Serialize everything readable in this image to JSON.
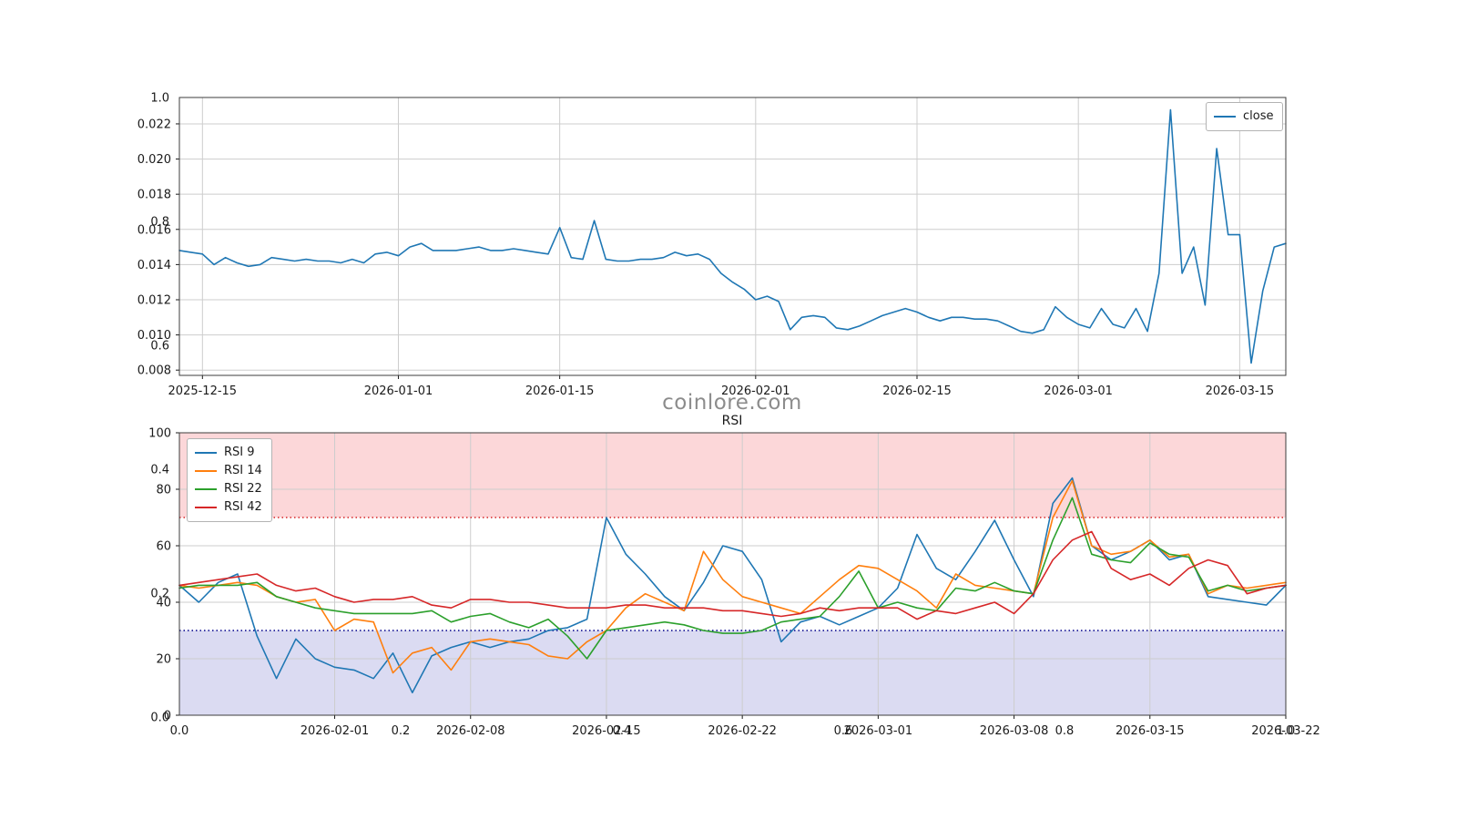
{
  "watermark": "coinlore.com",
  "rsi_title": "RSI",
  "chart_data": [
    {
      "name": "price-chart",
      "type": "line",
      "title": "",
      "xlabel": "",
      "ylabel": "",
      "start_date": "2025-12-13",
      "interval": "daily",
      "grid": true,
      "legend_position": "upper right",
      "ylim": [
        0.0077,
        0.0235
      ],
      "y_ticks": [
        {
          "value": 0.008,
          "label": "0.008"
        },
        {
          "value": 0.01,
          "label": "0.010"
        },
        {
          "value": 0.012,
          "label": "0.012"
        },
        {
          "value": 0.014,
          "label": "0.014"
        },
        {
          "value": 0.016,
          "label": "0.016"
        },
        {
          "value": 0.018,
          "label": "0.018"
        },
        {
          "value": 0.02,
          "label": "0.020"
        },
        {
          "value": 0.022,
          "label": "0.022"
        }
      ],
      "x_ticks": [
        {
          "index": 2,
          "label": "2025-12-15"
        },
        {
          "index": 19,
          "label": "2026-01-01"
        },
        {
          "index": 33,
          "label": "2026-01-15"
        },
        {
          "index": 50,
          "label": "2026-02-01"
        },
        {
          "index": 64,
          "label": "2026-02-15"
        },
        {
          "index": 78,
          "label": "2026-03-01"
        },
        {
          "index": 92,
          "label": "2026-03-15"
        }
      ],
      "series": [
        {
          "name": "close",
          "color": "#1f77b4",
          "values": [
            0.0148,
            0.0147,
            0.0146,
            0.014,
            0.0144,
            0.0141,
            0.0139,
            0.014,
            0.0144,
            0.0143,
            0.0142,
            0.0143,
            0.0142,
            0.0142,
            0.0141,
            0.0143,
            0.0141,
            0.0146,
            0.0147,
            0.0145,
            0.015,
            0.0152,
            0.0148,
            0.0148,
            0.0148,
            0.0149,
            0.015,
            0.0148,
            0.0148,
            0.0149,
            0.0148,
            0.0147,
            0.0146,
            0.0161,
            0.0144,
            0.0143,
            0.0165,
            0.0143,
            0.0142,
            0.0142,
            0.0143,
            0.0143,
            0.0144,
            0.0147,
            0.0145,
            0.0146,
            0.0143,
            0.0135,
            0.013,
            0.0126,
            0.012,
            0.0122,
            0.0119,
            0.0103,
            0.011,
            0.0111,
            0.011,
            0.0104,
            0.0103,
            0.0105,
            0.0108,
            0.0111,
            0.0113,
            0.0115,
            0.0113,
            0.011,
            0.0108,
            0.011,
            0.011,
            0.0109,
            0.0109,
            0.0108,
            0.0105,
            0.0102,
            0.0101,
            0.0103,
            0.0116,
            0.011,
            0.0106,
            0.0104,
            0.0115,
            0.0106,
            0.0104,
            0.0115,
            0.0102,
            0.0135,
            0.0228,
            0.0135,
            0.015,
            0.0117,
            0.0206,
            0.0157,
            0.0157,
            0.0084,
            0.0125,
            0.015,
            0.0152
          ]
        }
      ]
    },
    {
      "name": "rsi-chart",
      "type": "line",
      "title": "RSI",
      "xlabel": "",
      "ylabel": "",
      "start_date": "2026-01-24",
      "interval": "daily",
      "grid": true,
      "legend_position": "upper left",
      "ylim": [
        0,
        100
      ],
      "y_ticks": [
        {
          "value": 0,
          "label": "0"
        },
        {
          "value": 20,
          "label": "20"
        },
        {
          "value": 40,
          "label": "40"
        },
        {
          "value": 60,
          "label": "60"
        },
        {
          "value": 80,
          "label": "80"
        },
        {
          "value": 100,
          "label": "100"
        }
      ],
      "x_ticks": [
        {
          "index": 8,
          "label": "2026-02-01"
        },
        {
          "index": 15,
          "label": "2026-02-08"
        },
        {
          "index": 22,
          "label": "2026-02-15"
        },
        {
          "index": 29,
          "label": "2026-02-22"
        },
        {
          "index": 36,
          "label": "2026-03-01"
        },
        {
          "index": 43,
          "label": "2026-03-08"
        },
        {
          "index": 50,
          "label": "2026-03-15"
        },
        {
          "index": 57,
          "label": "2026-03-22"
        }
      ],
      "bands": [
        {
          "name": "overbought-band",
          "from": 70,
          "to": 100,
          "color": "#fcd7d9"
        },
        {
          "name": "oversold-band",
          "from": 0,
          "to": 30,
          "color": "#dbdbf2"
        }
      ],
      "hlines": [
        {
          "name": "overbought-line",
          "y": 70,
          "color": "#d62728"
        },
        {
          "name": "oversold-line",
          "y": 30,
          "color": "#00008b"
        }
      ],
      "series": [
        {
          "name": "RSI 9",
          "color": "#1f77b4",
          "values": [
            46,
            40,
            47,
            50,
            28,
            13,
            27,
            20,
            17,
            16,
            13,
            22,
            8,
            21,
            24,
            26,
            24,
            26,
            27,
            30,
            31,
            34,
            70,
            57,
            50,
            42,
            37,
            47,
            60,
            58,
            48,
            26,
            33,
            35,
            32,
            35,
            38,
            45,
            64,
            52,
            48,
            58,
            69,
            55,
            42,
            75,
            84,
            60,
            55,
            58,
            62,
            55,
            57,
            42,
            41,
            40,
            39,
            46
          ]
        },
        {
          "name": "RSI 14",
          "color": "#ff7f0e",
          "values": [
            46,
            45,
            46,
            47,
            46,
            42,
            40,
            41,
            30,
            34,
            33,
            15,
            22,
            24,
            16,
            26,
            27,
            26,
            25,
            21,
            20,
            26,
            30,
            38,
            43,
            40,
            37,
            58,
            48,
            42,
            40,
            38,
            36,
            42,
            48,
            53,
            52,
            48,
            44,
            38,
            50,
            46,
            45,
            44,
            43,
            70,
            83,
            60,
            57,
            58,
            62,
            56,
            57,
            43,
            46,
            45,
            46,
            47
          ]
        },
        {
          "name": "RSI 22",
          "color": "#2ca02c",
          "values": [
            45,
            46,
            46,
            46,
            47,
            42,
            40,
            38,
            37,
            36,
            36,
            36,
            36,
            37,
            33,
            35,
            36,
            33,
            31,
            34,
            28,
            20,
            30,
            31,
            32,
            33,
            32,
            30,
            29,
            29,
            30,
            33,
            34,
            35,
            42,
            51,
            38,
            40,
            38,
            37,
            45,
            44,
            47,
            44,
            43,
            62,
            77,
            57,
            55,
            54,
            61,
            57,
            56,
            44,
            46,
            44,
            45,
            46
          ]
        },
        {
          "name": "RSI 42",
          "color": "#d62728",
          "values": [
            46,
            47,
            48,
            49,
            50,
            46,
            44,
            45,
            42,
            40,
            41,
            41,
            42,
            39,
            38,
            41,
            41,
            40,
            40,
            39,
            38,
            38,
            38,
            39,
            39,
            38,
            38,
            38,
            37,
            37,
            36,
            35,
            36,
            38,
            37,
            38,
            38,
            38,
            34,
            37,
            36,
            38,
            40,
            36,
            43,
            55,
            62,
            65,
            52,
            48,
            50,
            46,
            52,
            55,
            53,
            43,
            45,
            46
          ]
        }
      ]
    }
  ],
  "overlay_axis": {
    "y_ticks": [
      {
        "value": 1.0,
        "label": "1.0"
      },
      {
        "value": 0.8,
        "label": "0.8"
      },
      {
        "value": 0.6,
        "label": "0.6"
      },
      {
        "value": 0.4,
        "label": "0.4"
      },
      {
        "value": 0.2,
        "label": "0.2"
      },
      {
        "value": 0.0,
        "label": "0.0"
      }
    ],
    "x_ticks": [
      {
        "value": 0.0,
        "label": "0.0"
      },
      {
        "value": 0.2,
        "label": "0.2"
      },
      {
        "value": 0.4,
        "label": "0.4"
      },
      {
        "value": 0.6,
        "label": "0.6"
      },
      {
        "value": 0.8,
        "label": "0.8"
      },
      {
        "value": 1.0,
        "label": "1.0"
      }
    ]
  }
}
